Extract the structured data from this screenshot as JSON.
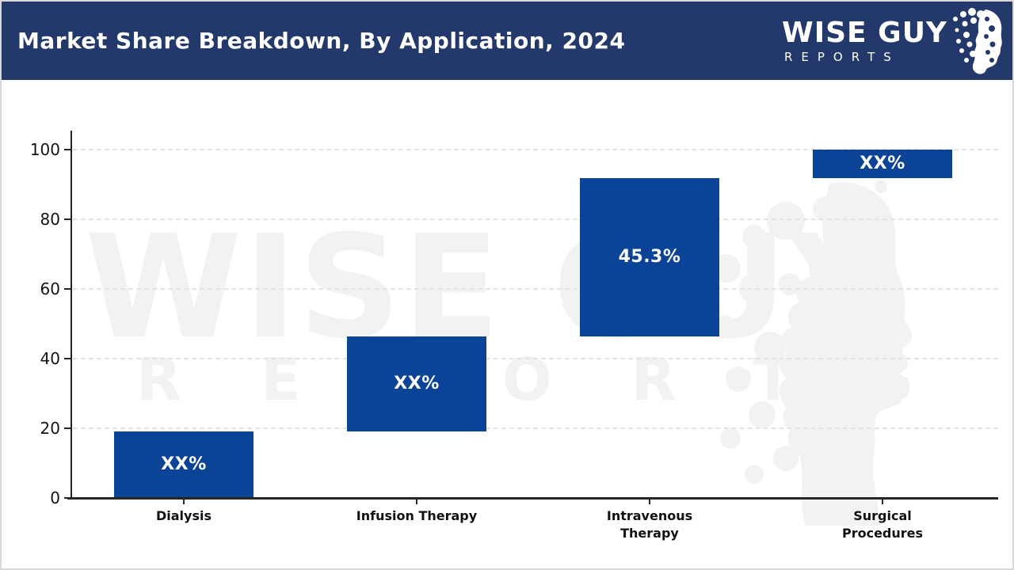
{
  "header": {
    "title": "Market Share Breakdown, By Application, 2024",
    "logo": {
      "name": "WISE GUY",
      "sub": "REPORTS"
    }
  },
  "watermark": {
    "line1": "WISE GUY",
    "line2": "REPORTS"
  },
  "colors": {
    "header_bg": "#23396b",
    "bar": "#0b4397",
    "bar_label": "#ffffff",
    "watermark": "#f2f2f2",
    "grid": "#e4e4e4",
    "axis": "#262626"
  },
  "chart_data": {
    "type": "bar",
    "subtype": "floating-waterfall-segments",
    "title": "Market Share Breakdown, By Application, 2024",
    "categories": [
      "Dialysis",
      "Infusion Therapy",
      "Intravenous\nTherapy",
      "Surgical\nProcedures"
    ],
    "segments": [
      {
        "category": "Dialysis",
        "start": 0,
        "end": 19.1,
        "label": "XX%"
      },
      {
        "category": "Infusion Therapy",
        "start": 19.1,
        "end": 46.4,
        "label": "XX%"
      },
      {
        "category": "Intravenous Therapy",
        "start": 46.4,
        "end": 91.7,
        "value": 45.3,
        "label": "45.3%"
      },
      {
        "category": "Surgical Procedures",
        "start": 91.7,
        "end": 100,
        "label": "XX%"
      }
    ],
    "xlabel": "",
    "ylabel": "",
    "ylim": [
      0,
      100
    ],
    "yticks": [
      0,
      20,
      40,
      60,
      80,
      100
    ],
    "grid": "horizontal-dashed",
    "legend": "none"
  }
}
